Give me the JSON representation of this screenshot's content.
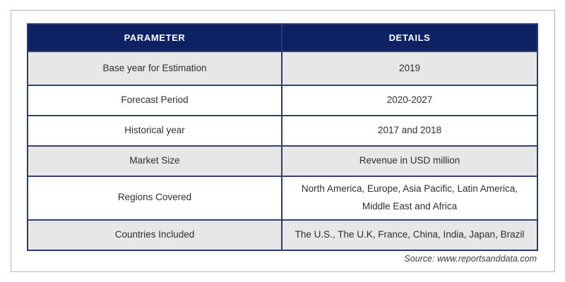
{
  "chart_data": {
    "type": "table",
    "title": "",
    "columns": [
      {
        "label": "PARAMETER"
      },
      {
        "label": "DETAILS"
      }
    ],
    "rows": [
      {
        "parameter": "Base year for Estimation",
        "details": "2019"
      },
      {
        "parameter": "Forecast Period",
        "details": "2020-2027"
      },
      {
        "parameter": "Historical year",
        "details": "2017 and 2018"
      },
      {
        "parameter": "Market Size",
        "details": "Revenue in USD million"
      },
      {
        "parameter": "Regions Covered",
        "details": "North America, Europe, Asia Pacific, Latin America, Middle East and Africa"
      },
      {
        "parameter": "Countries Included",
        "details": "The U.S., The  U.K, France, China, India, Japan, Brazil"
      }
    ],
    "source_note": "Source: www.reportsanddata.com",
    "layout": {
      "shaded_row_indexes": [
        0,
        3,
        5
      ],
      "legend_position": "none",
      "grid": "cell-borders"
    }
  },
  "colors": {
    "header_bg": "#0e2263",
    "header_text": "#ffffff",
    "row_alt_bg": "#e7e7e7",
    "row_bg": "#ffffff",
    "cell_border": "#2c3b6b",
    "card_border": "#b3b3b3",
    "body_text": "#2e2e2e",
    "source_text": "#3a3a3a"
  }
}
